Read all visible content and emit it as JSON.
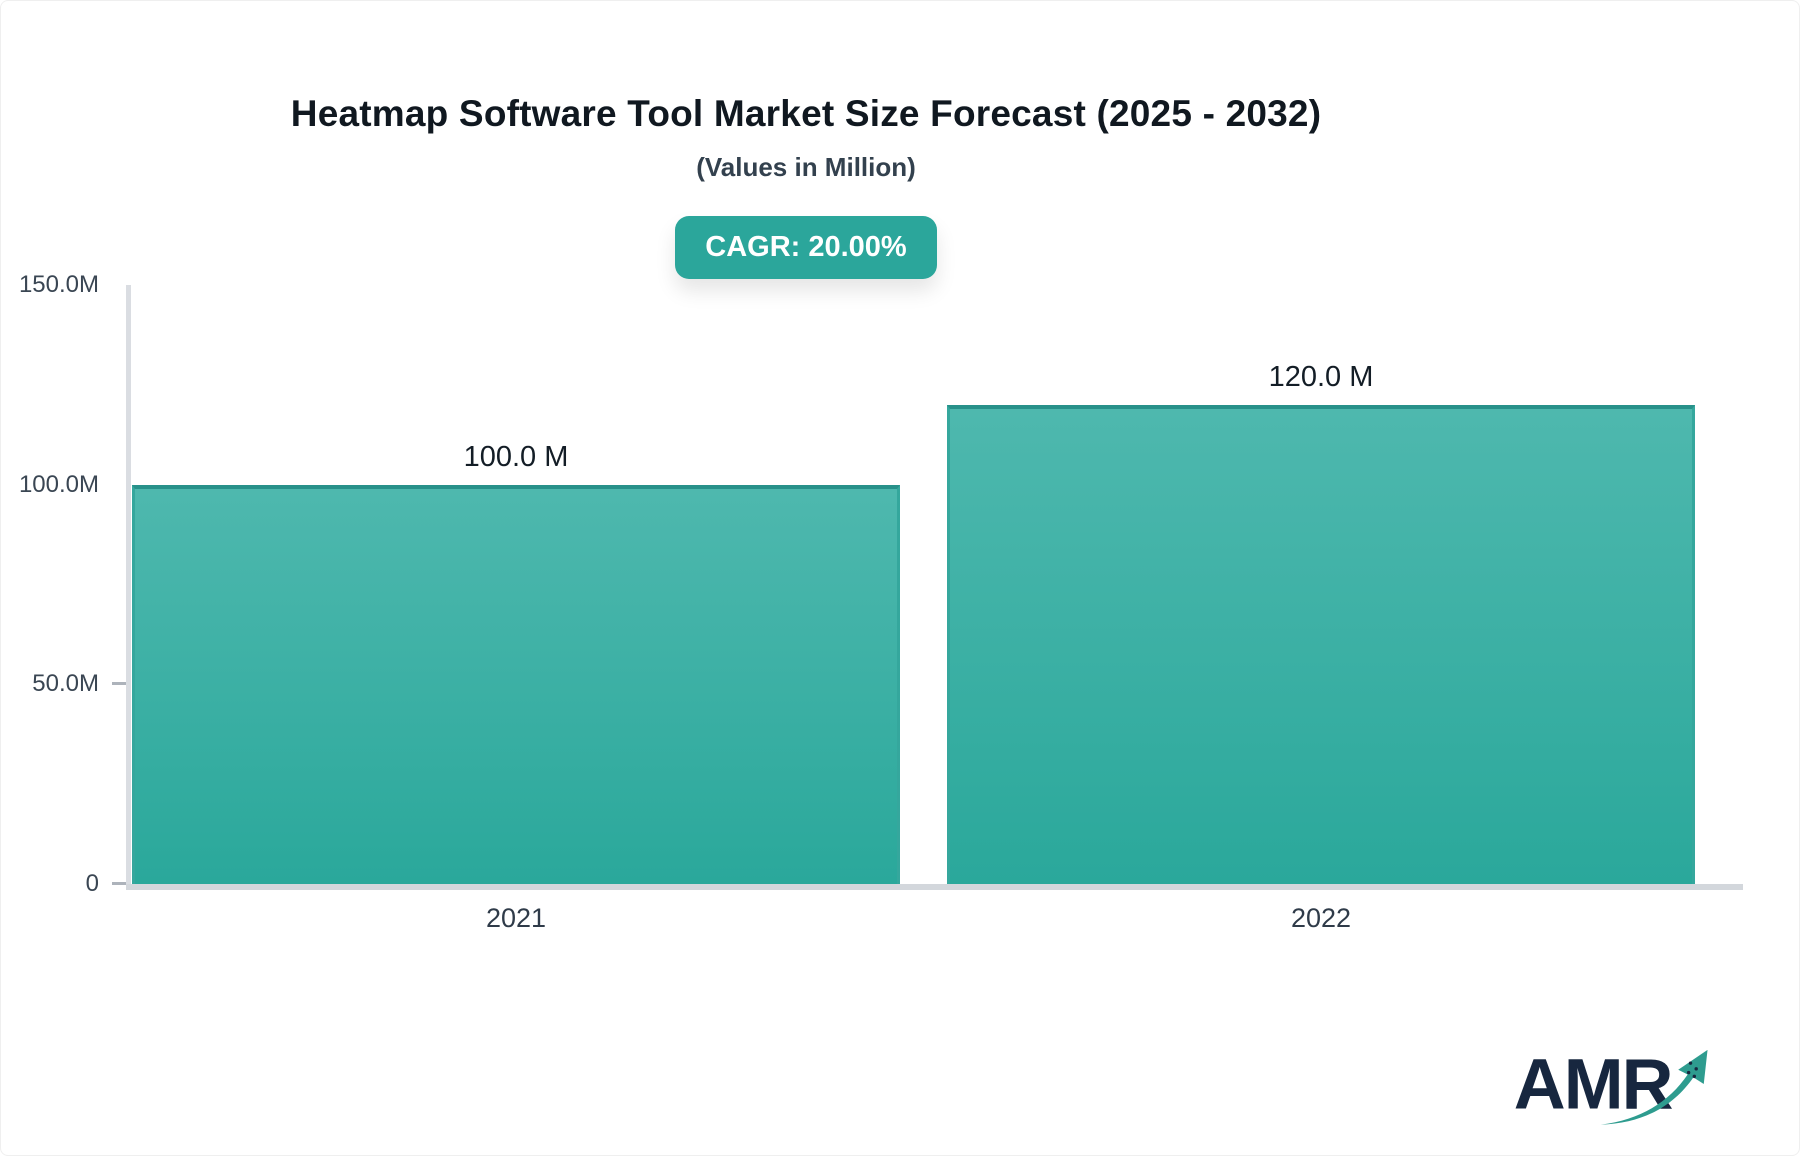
{
  "header": {
    "title": "Heatmap Software Tool Market Size Forecast (2025 - 2032)",
    "subtitle": "(Values in Million)",
    "cagr_label": "CAGR: 20.00%"
  },
  "chart_data": {
    "type": "bar",
    "title": "Heatmap Software Tool Market Size Forecast (2025 - 2032)",
    "subtitle": "(Values in Million)",
    "categories": [
      "2021",
      "2022"
    ],
    "values": [
      100.0,
      120.0
    ],
    "value_labels": [
      "100.0 M",
      "120.0 M"
    ],
    "unit": "Million (M)",
    "ylim": [
      0,
      150
    ],
    "yticks": [
      {
        "label": "150.0M",
        "value": 150,
        "dash": false
      },
      {
        "label": "100.0M",
        "value": 100,
        "dash": false
      },
      {
        "label": "50.0M",
        "value": 50,
        "dash": true
      },
      {
        "label": "0",
        "value": 0,
        "dash": true
      }
    ],
    "grid": false,
    "legend": false,
    "annotations": [
      "CAGR: 20.00%"
    ]
  },
  "colors": {
    "accent_teal": "#2ba69b",
    "bar_fill_top": "#4eb8ae",
    "bar_fill_bottom": "#2aa89b",
    "bar_border": "#28918a",
    "axis_gray": "#dadde2",
    "tick_text": "#3a4653",
    "title_text": "#101820",
    "logo_navy": "#17273f",
    "logo_arrow": "#2e9c8f"
  },
  "logo": {
    "text": "AMR"
  }
}
